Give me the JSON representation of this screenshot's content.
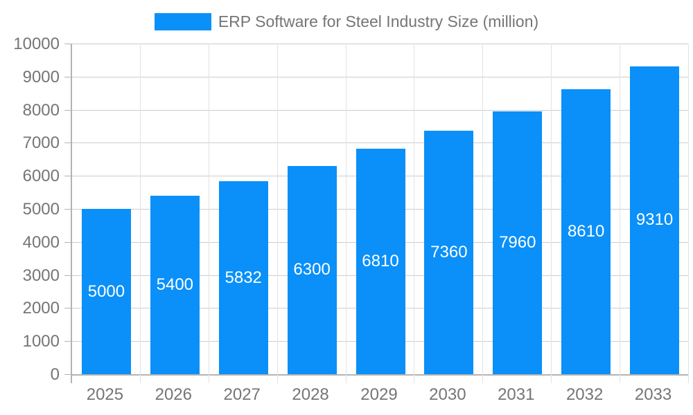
{
  "chart_data": {
    "type": "bar",
    "title": "ERP Software for Steel Industry Size (million)",
    "categories": [
      "2025",
      "2026",
      "2027",
      "2028",
      "2029",
      "2030",
      "2031",
      "2032",
      "2033"
    ],
    "series": [
      {
        "name": "ERP Software for Steel Industry Size (million)",
        "values": [
          5000,
          5400,
          5832,
          6300,
          6810,
          7360,
          7960,
          8610,
          9310
        ]
      }
    ],
    "xlabel": "",
    "ylabel": "",
    "ylim": [
      0,
      10000
    ],
    "ytick_step": 1000,
    "grid": true,
    "legend_position": "top",
    "colors": {
      "bar": "#0a90f8",
      "bar_label": "#ffffff",
      "axis_text": "#757575",
      "hgrid": "#cccccc",
      "vgrid": "#e2e2e2",
      "axis_line": "#b3b3b3",
      "background": "#ffffff"
    }
  }
}
